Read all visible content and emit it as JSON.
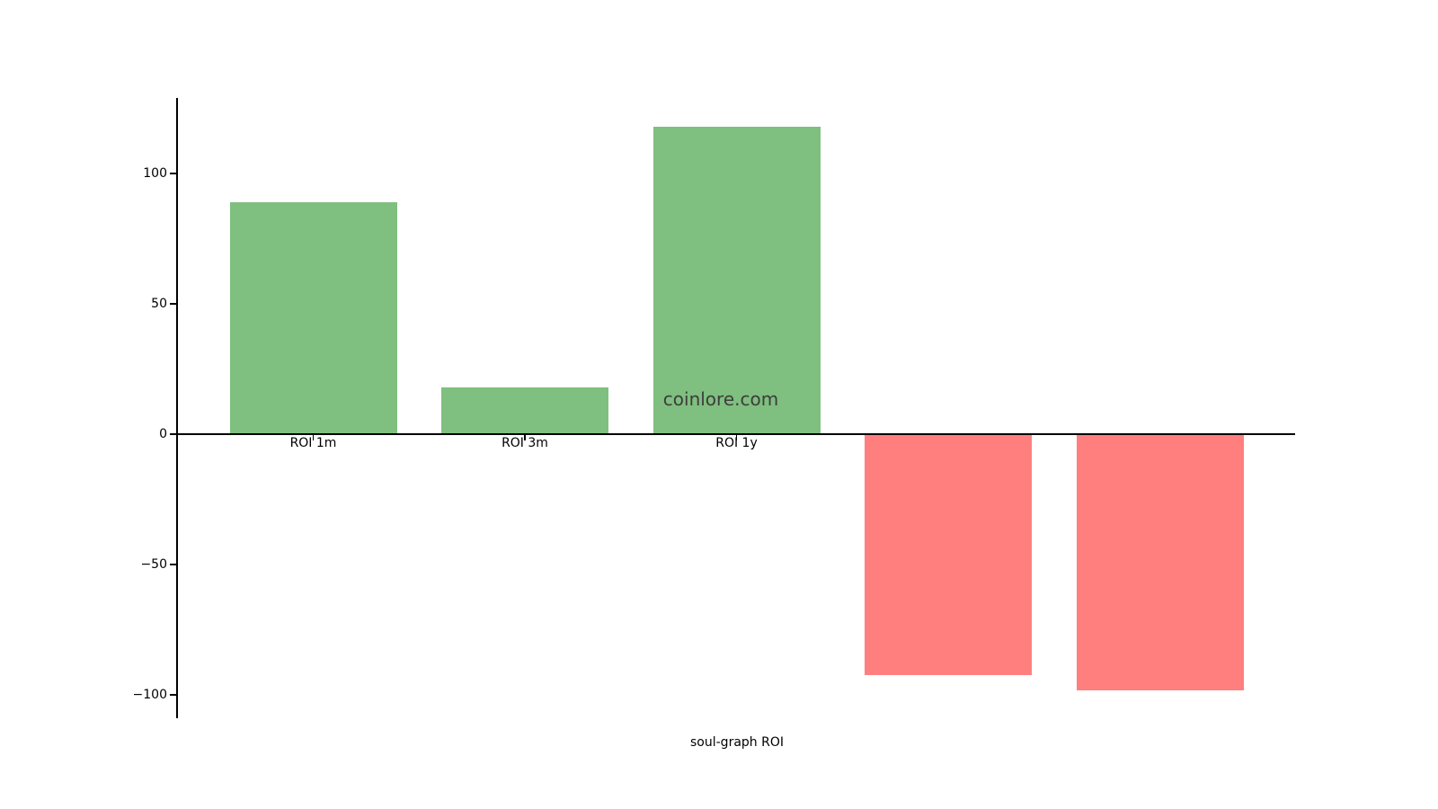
{
  "watermark": "coinlore.com",
  "chart_data": {
    "type": "bar",
    "title": "",
    "xlabel": "soul-graph ROI",
    "ylabel": "",
    "categories": [
      "ROI 1m",
      "ROI 3m",
      "ROI 1y",
      "",
      ""
    ],
    "values": [
      89,
      18,
      118,
      -92,
      -98
    ],
    "positive_color": "#7fbf7f",
    "negative_color": "#ff7f7f",
    "axis_color": "#000000",
    "watermark_color": "#3d3d3d",
    "ylim": [
      -109,
      129
    ],
    "yticks": [
      {
        "value": 100,
        "label": "100"
      },
      {
        "value": 50,
        "label": "50"
      },
      {
        "value": 0,
        "label": "0"
      },
      {
        "value": -50,
        "label": "−50"
      },
      {
        "value": -100,
        "label": "−100"
      }
    ],
    "grid": false,
    "legend": null
  }
}
